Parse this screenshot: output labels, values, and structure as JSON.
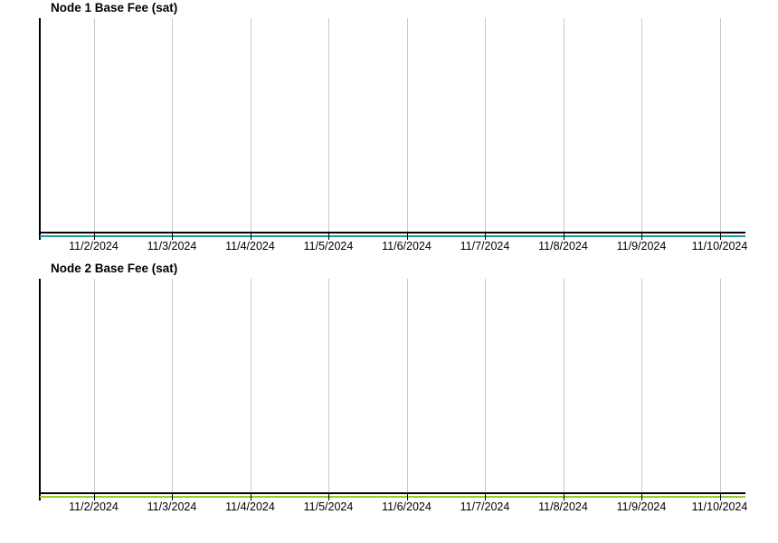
{
  "colors": {
    "axis": "#000000",
    "gridline": "#C8C8C8",
    "background": "#FFFFFF"
  },
  "charts": [
    {
      "title": "Node 1 Base Fee (sat)",
      "line_color": "#1E99A0",
      "x_labels": [
        "11/2/2024",
        "11/3/2024",
        "11/4/2024",
        "11/5/2024",
        "11/6/2024",
        "11/7/2024",
        "11/8/2024",
        "11/9/2024",
        "11/10/2024"
      ]
    },
    {
      "title": "Node 2 Base Fee (sat)",
      "line_color": "#9ACD32",
      "x_labels": [
        "11/2/2024",
        "11/3/2024",
        "11/4/2024",
        "11/5/2024",
        "11/6/2024",
        "11/7/2024",
        "11/8/2024",
        "11/9/2024",
        "11/10/2024"
      ]
    }
  ],
  "chart_data": [
    {
      "type": "line",
      "title": "Node 1 Base Fee (sat)",
      "x": [
        "11/2/2024",
        "11/3/2024",
        "11/4/2024",
        "11/5/2024",
        "11/6/2024",
        "11/7/2024",
        "11/8/2024",
        "11/9/2024",
        "11/10/2024"
      ],
      "series": [
        {
          "name": "Node 1 Base Fee (sat)",
          "values": [
            0,
            0,
            0,
            0,
            0,
            0,
            0,
            0,
            0
          ]
        }
      ],
      "xlabel": "",
      "ylabel": "",
      "y_tick_labels": "none",
      "legend": "none",
      "grid": "vertical-only",
      "line_color": "#1E99A0",
      "layout_hint": "flat line drawn along the x-axis baseline"
    },
    {
      "type": "line",
      "title": "Node 2 Base Fee (sat)",
      "x": [
        "11/2/2024",
        "11/3/2024",
        "11/4/2024",
        "11/5/2024",
        "11/6/2024",
        "11/7/2024",
        "11/8/2024",
        "11/9/2024",
        "11/10/2024"
      ],
      "series": [
        {
          "name": "Node 2 Base Fee (sat)",
          "values": [
            0,
            0,
            0,
            0,
            0,
            0,
            0,
            0,
            0
          ]
        }
      ],
      "xlabel": "",
      "ylabel": "",
      "y_tick_labels": "none",
      "legend": "none",
      "grid": "vertical-only",
      "line_color": "#9ACD32",
      "layout_hint": "flat line drawn along the x-axis baseline"
    }
  ]
}
